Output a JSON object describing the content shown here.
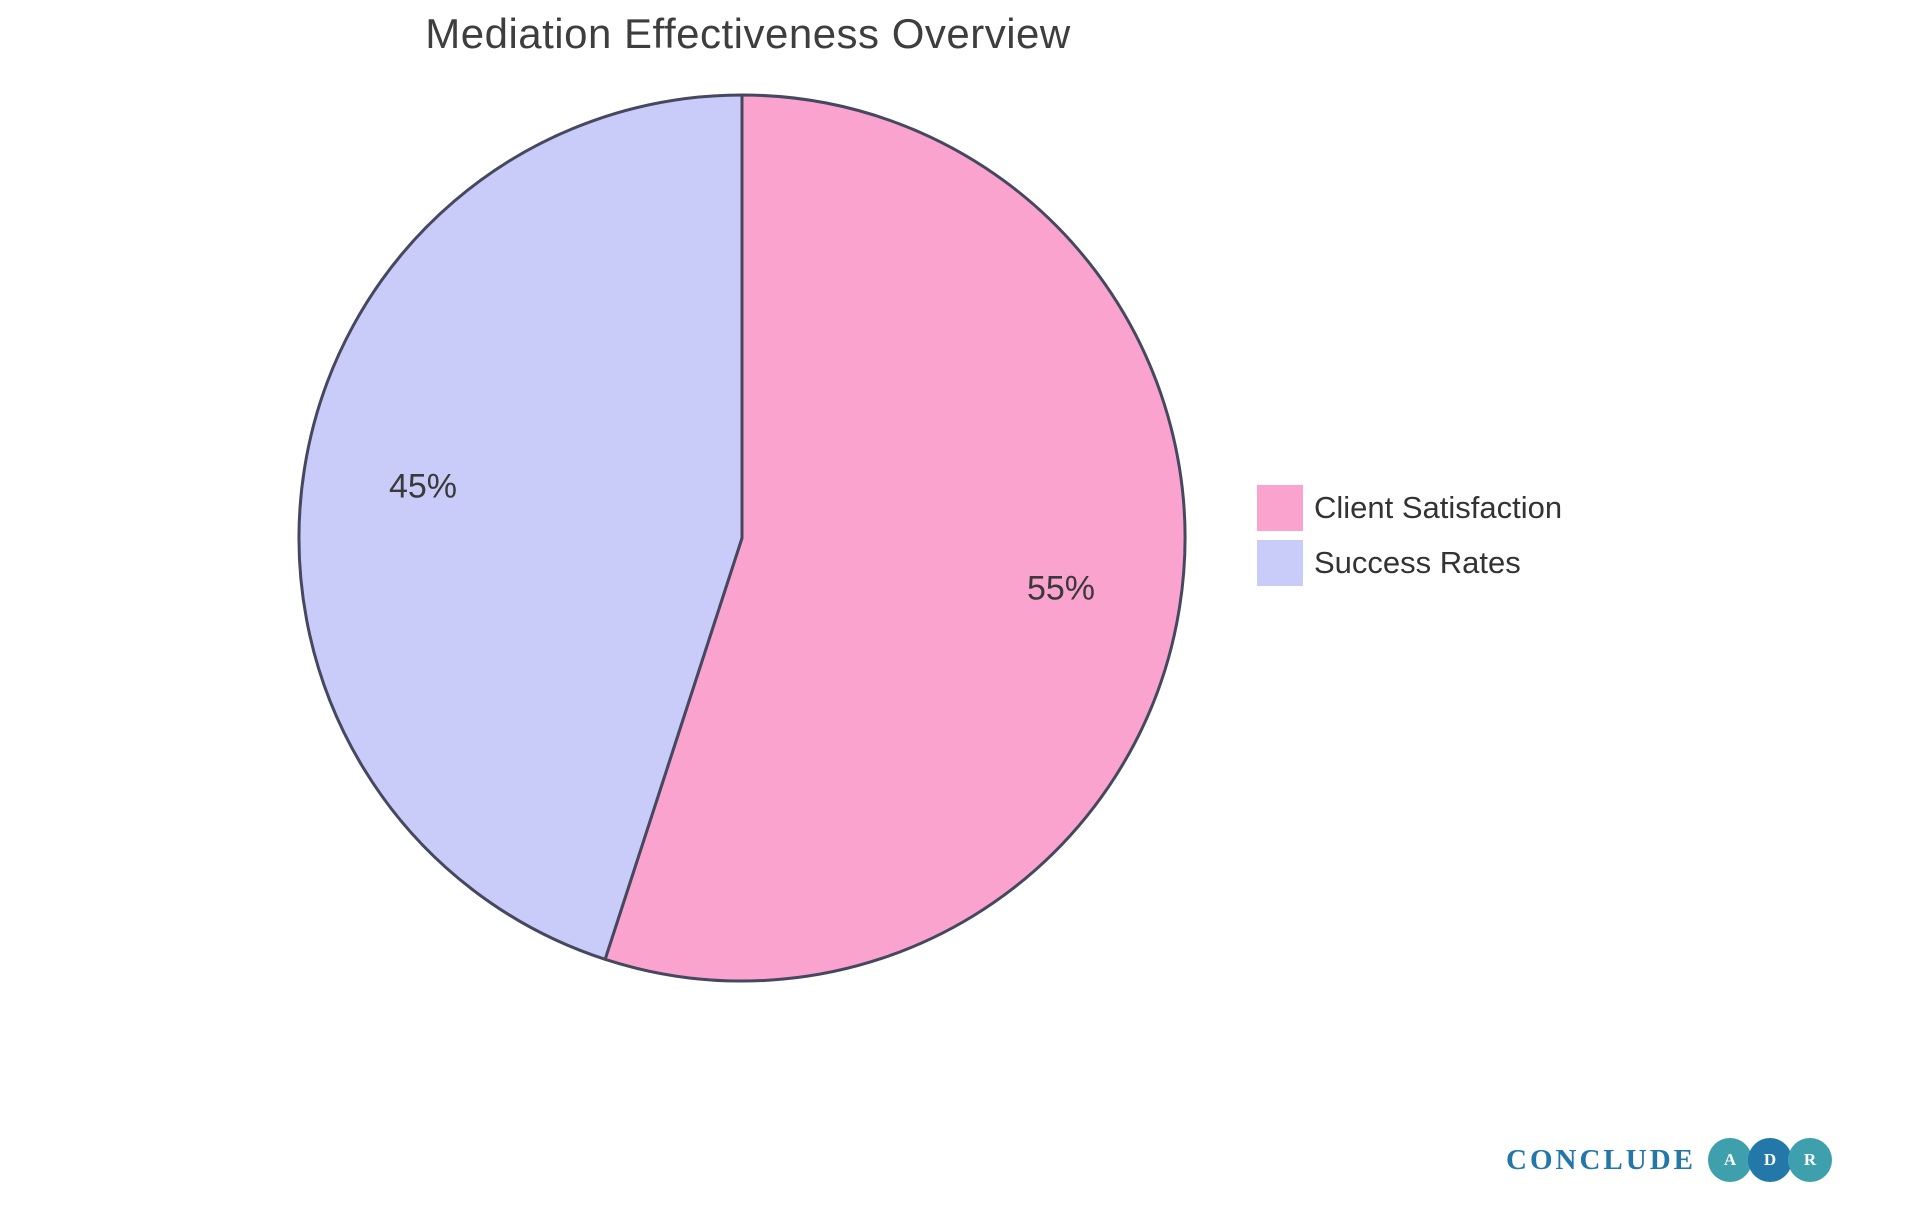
{
  "chart_data": {
    "type": "pie",
    "title": "Mediation Effectiveness Overview",
    "slices": [
      {
        "label": "Client Satisfaction",
        "value": 55,
        "display": "55%",
        "color": "#FAA3CF"
      },
      {
        "label": "Success Rates",
        "value": 45,
        "display": "45%",
        "color": "#C9CCF8"
      }
    ],
    "start_angle_deg": 0,
    "direction": "clockwise",
    "stroke_color": "#464860",
    "stroke_width": 3,
    "label_color": "#3A3A3A",
    "legend_position": "right",
    "legend": [
      "Client Satisfaction",
      "Success Rates"
    ]
  },
  "branding": {
    "wordmark": "CONCLUDE",
    "wordmark_color": "#2377A9",
    "badges": [
      {
        "letter": "A",
        "color": "#3EA0AC"
      },
      {
        "letter": "D",
        "color": "#2478A9"
      },
      {
        "letter": "R",
        "color": "#3EA0AC"
      }
    ]
  }
}
